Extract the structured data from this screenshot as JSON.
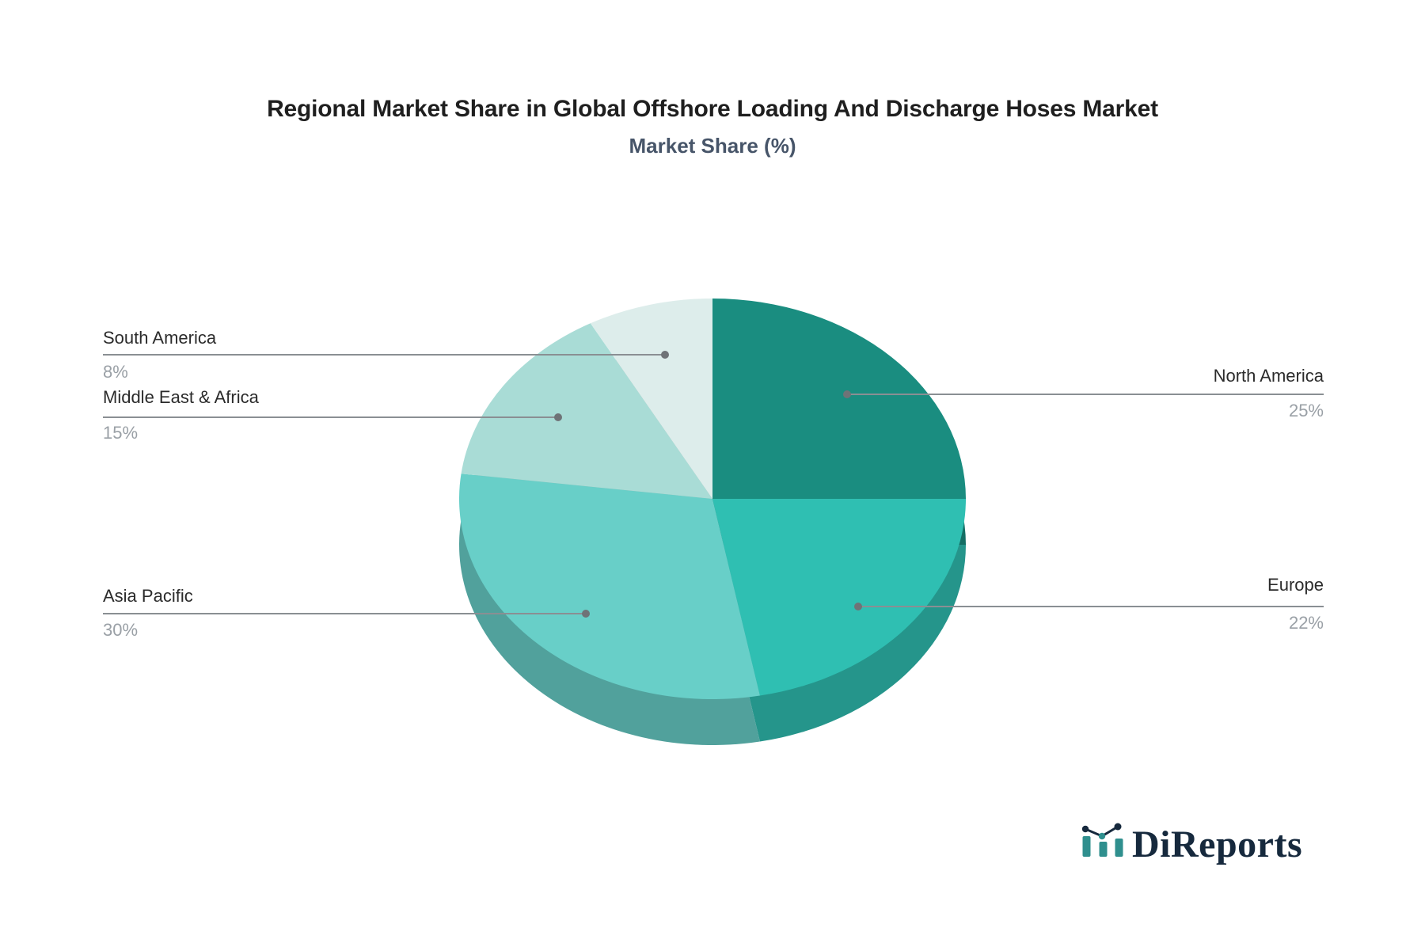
{
  "header": {
    "title": "Regional Market Share in Global Offshore Loading And Discharge Hoses Market",
    "subtitle": "Market Share (%)"
  },
  "chart_data": {
    "type": "pie",
    "title": "Regional Market Share in Global Offshore Loading And Discharge Hoses Market",
    "subtitle": "Market Share (%)",
    "unit": "%",
    "effect": "3d",
    "start_angle_deg": 0,
    "direction": "clockwise",
    "legend_position": "callout-labels",
    "slices": [
      {
        "label": "North America",
        "value": 25,
        "display": "25%",
        "color": "#1a8d80"
      },
      {
        "label": "Europe",
        "value": 22,
        "display": "22%",
        "color": "#2fbfb2"
      },
      {
        "label": "Asia Pacific",
        "value": 30,
        "display": "30%",
        "color": "#68cfc8"
      },
      {
        "label": "Middle East & Africa",
        "value": 15,
        "display": "15%",
        "color": "#a9dcd6"
      },
      {
        "label": "South America",
        "value": 8,
        "display": "8%",
        "color": "#ddedeb"
      }
    ]
  },
  "callout_style": {
    "line_color": "#8a8f93",
    "dot_color": "#6f7377",
    "label_color": "#2b2b2b",
    "value_color": "#9aa0a6"
  },
  "logo": {
    "text": "DiReports",
    "text_color": "#16293d",
    "icon": "bar-chart-with-trend-dots-icon",
    "icon_bar_color": "#2f8f8e",
    "icon_dot_color": "#16293d"
  }
}
